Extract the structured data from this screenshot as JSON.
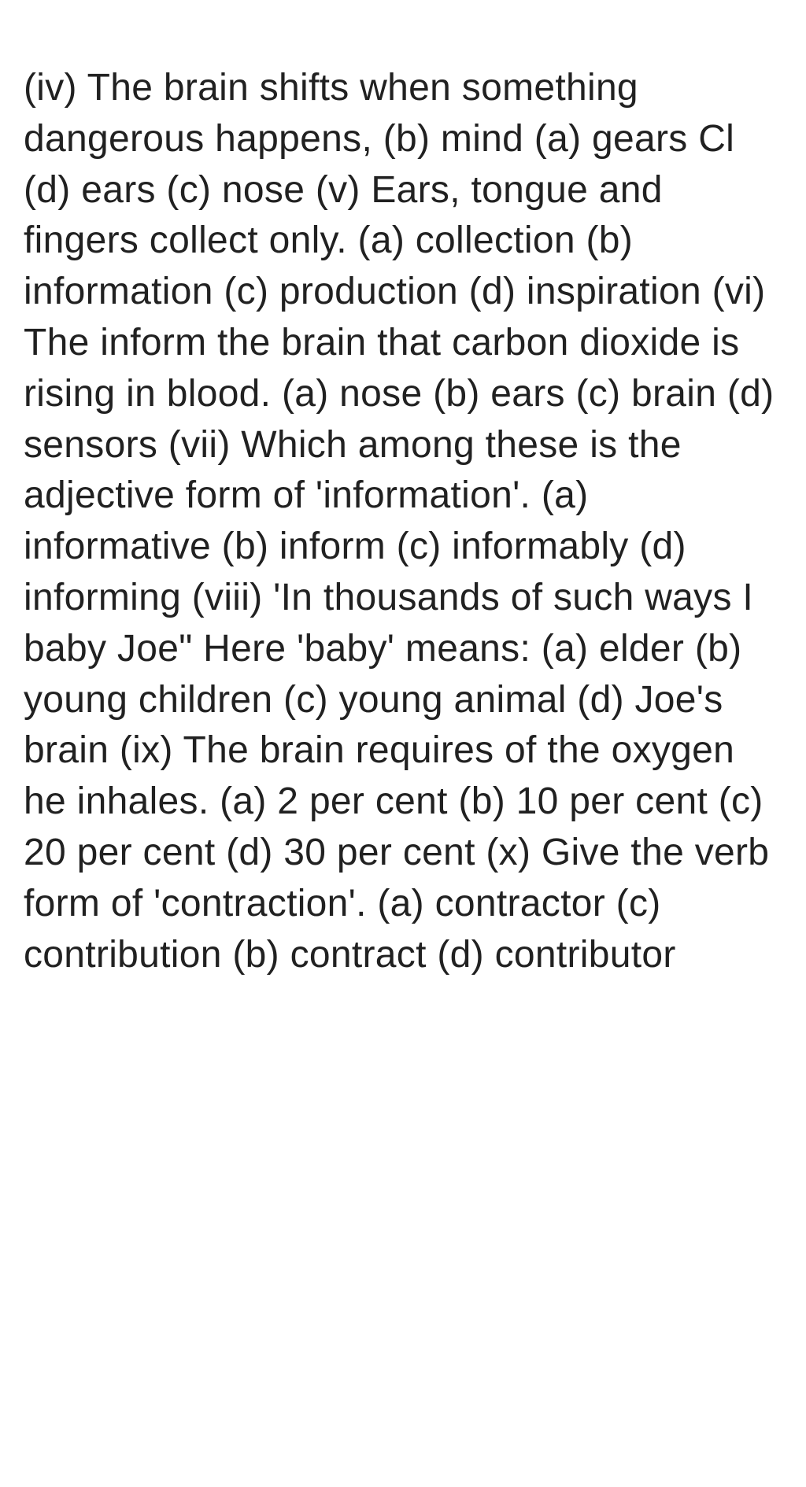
{
  "document": {
    "text": "(iv) The brain shifts when something dangerous happens, (b) mind (a) gears Cl (d) ears (c) nose (v) Ears, tongue and fingers collect only. (a) collection (b) information (c) production (d) inspiration (vi) The inform the brain that carbon dioxide is rising in blood. (a) nose (b) ears (c) brain (d) sensors (vii) Which among these is the adjective form of 'information'. (a) informative (b) inform (c) informably (d) informing (viii) 'In thousands of such ways I baby Joe\" Here 'baby' means: (a) elder (b) young children (c) young animal (d) Joe's brain (ix) The brain requires of the oxygen he inhales. (a) 2 per cent (b) 10 per cent (c) 20 per cent (d) 30 per cent (x) Give the verb form of 'contraction'. (a) contractor (c) contribution (b) contract (d) contributor",
    "font_size": 48,
    "line_height": 1.35,
    "text_color": "#212121",
    "background_color": "#ffffff"
  }
}
